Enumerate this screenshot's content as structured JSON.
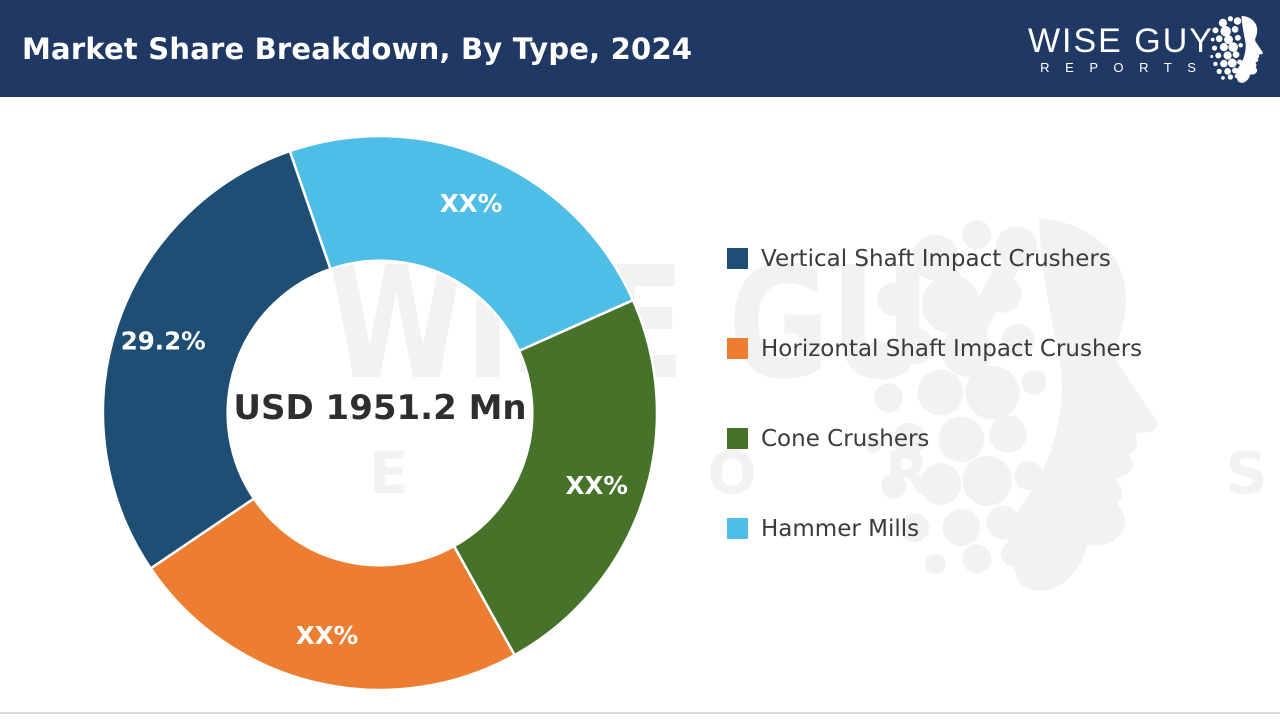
{
  "header": {
    "title": "Market Share Breakdown, By Type, 2024",
    "bg_color": "#1F3864",
    "logo_line1": "WISE GUY",
    "logo_line2": "R E P O R T S"
  },
  "watermark": {
    "line1": "WISE GUY",
    "line2": "R E P O R T S"
  },
  "chart_data": {
    "type": "pie",
    "subtype": "donut",
    "title": "Market Share Breakdown, By Type, 2024",
    "center_label": "USD 1951.2 Mn",
    "hole_ratio": 0.55,
    "start_angle_deg_from_north": -19,
    "direction": "clockwise",
    "gap_color": "#ffffff",
    "segments": [
      {
        "label": "Hammer Mills",
        "value": 23.6,
        "data_label": "XX%",
        "color": "#4FBEE7"
      },
      {
        "label": "Cone Crushers",
        "value": 23.6,
        "data_label": "XX%",
        "color": "#47722A"
      },
      {
        "label": "Horizontal Shaft Impact Crushers",
        "value": 23.6,
        "data_label": "XX%",
        "color": "#ED7D31"
      },
      {
        "label": "Vertical Shaft Impact Crushers",
        "value": 29.2,
        "data_label": "29.2%",
        "color": "#1F4E74"
      }
    ],
    "legend_position": "right"
  },
  "legend": {
    "items": [
      {
        "label": "Vertical Shaft Impact Crushers",
        "color": "#1F4E74"
      },
      {
        "label": "Horizontal Shaft Impact Crushers",
        "color": "#ED7D31"
      },
      {
        "label": "Cone Crushers",
        "color": "#47722A"
      },
      {
        "label": "Hammer Mills",
        "color": "#4FBEE7"
      }
    ]
  },
  "colors": {
    "header_bg": "#1F3864",
    "center_text": "#2E2E2E",
    "legend_text": "#3B3B3B",
    "watermark": "#F2F2F2",
    "bottom_line": "#D9D9D9"
  }
}
